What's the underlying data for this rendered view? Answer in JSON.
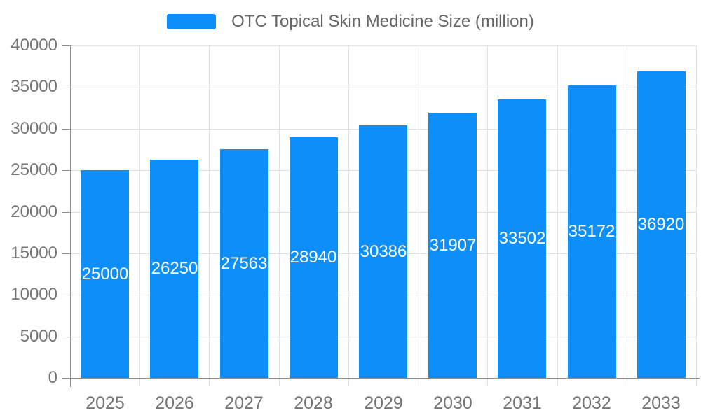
{
  "chart_data": {
    "type": "bar",
    "title": "OTC Topical Skin Medicine Size (million)",
    "categories": [
      "2025",
      "2026",
      "2027",
      "2028",
      "2029",
      "2030",
      "2031",
      "2032",
      "2033"
    ],
    "values": [
      25000,
      26250,
      27563,
      28940,
      30386,
      31907,
      33502,
      35172,
      36920
    ],
    "xlabel": "",
    "ylabel": "",
    "ylim": [
      0,
      40000
    ],
    "ytick_step": 5000,
    "ytick_labels": [
      "0",
      "5000",
      "10000",
      "15000",
      "20000",
      "25000",
      "30000",
      "35000",
      "40000"
    ],
    "grid": true,
    "legend_position": "top",
    "bar_labels_inside": true
  },
  "legend": {
    "label": "OTC Topical Skin Medicine Size (million)",
    "swatch": "legend-swatch"
  },
  "colors": {
    "bar": "#0d8ef8",
    "grid": "#e0e0e0",
    "axis": "#8f8f8f",
    "label": "#757575",
    "legend_text": "#666666",
    "value_label": "#ffffff"
  }
}
